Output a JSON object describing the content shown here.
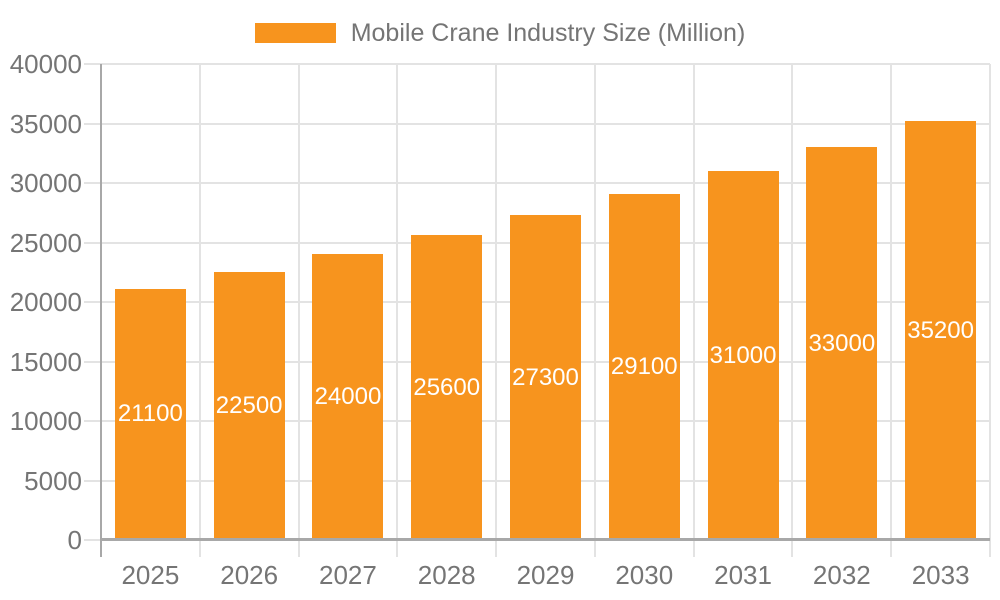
{
  "chart_data": {
    "type": "bar",
    "title": "Mobile Crane Industry Size (Million)",
    "legend": [
      "Mobile Crane Industry Size (Million)"
    ],
    "legend_position": "top",
    "categories": [
      "2025",
      "2026",
      "2027",
      "2028",
      "2029",
      "2030",
      "2031",
      "2032",
      "2033"
    ],
    "values": [
      21100,
      22500,
      24000,
      25600,
      27300,
      29100,
      31000,
      33000,
      35200
    ],
    "bar_labels": [
      "21100",
      "22500",
      "24000",
      "25600",
      "27300",
      "29100",
      "31000",
      "33000",
      "35200"
    ],
    "xlabel": "",
    "ylabel": "",
    "ylim": [
      0,
      40000
    ],
    "yticks": [
      0,
      5000,
      10000,
      15000,
      20000,
      25000,
      30000,
      35000,
      40000
    ],
    "ytick_labels": [
      "0",
      "5000",
      "10000",
      "15000",
      "20000",
      "25000",
      "30000",
      "35000",
      "40000"
    ],
    "grid": true,
    "colors": {
      "bar": "#F7941E",
      "bar_label_text": "#FFFFFF",
      "axis_text": "#757575",
      "grid_line": "#E3E3E3",
      "axis_line": "#A8A8A8",
      "background": "#FFFFFF"
    }
  }
}
